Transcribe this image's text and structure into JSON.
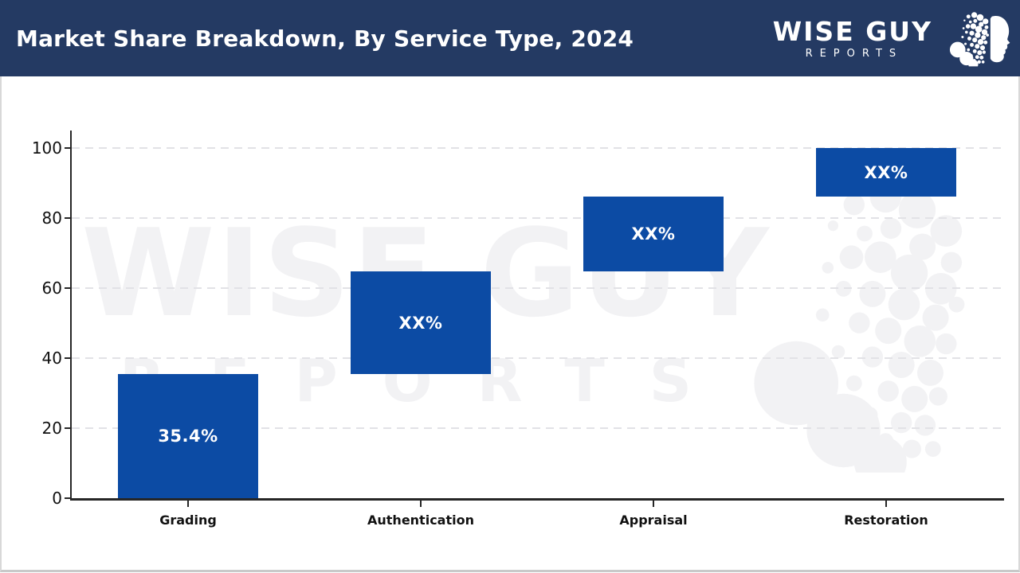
{
  "header": {
    "title": "Market Share Breakdown, By Service Type, 2024",
    "background_color": "#243a63",
    "logo": {
      "line1": "WISE GUY",
      "line2": "REPORTS"
    }
  },
  "watermark": {
    "line1": "WISE GUY",
    "line2": "REPORTS"
  },
  "chart_data": {
    "type": "waterfall",
    "title": "Market Share Breakdown, By Service Type, 2024",
    "categories": [
      "Grading",
      "Authentication",
      "Appraisal",
      "Restoration"
    ],
    "segments": [
      {
        "category": "Grading",
        "start": 0,
        "end": 35.4,
        "label": "35.4%"
      },
      {
        "category": "Authentication",
        "start": 35.4,
        "end": 64.7,
        "label": "XX%"
      },
      {
        "category": "Appraisal",
        "start": 64.7,
        "end": 86.1,
        "label": "XX%"
      },
      {
        "category": "Restoration",
        "start": 86.1,
        "end": 100,
        "label": "XX%"
      }
    ],
    "xlabel": "",
    "ylabel": "",
    "ylim": [
      0,
      100
    ],
    "yticks": [
      0,
      20,
      40,
      60,
      80,
      100
    ],
    "grid": "horizontal-dashed",
    "legend": "none",
    "bar_color": "#0c4ba4",
    "bar_label_color": "#ffffff",
    "axis_color": "#262626"
  }
}
